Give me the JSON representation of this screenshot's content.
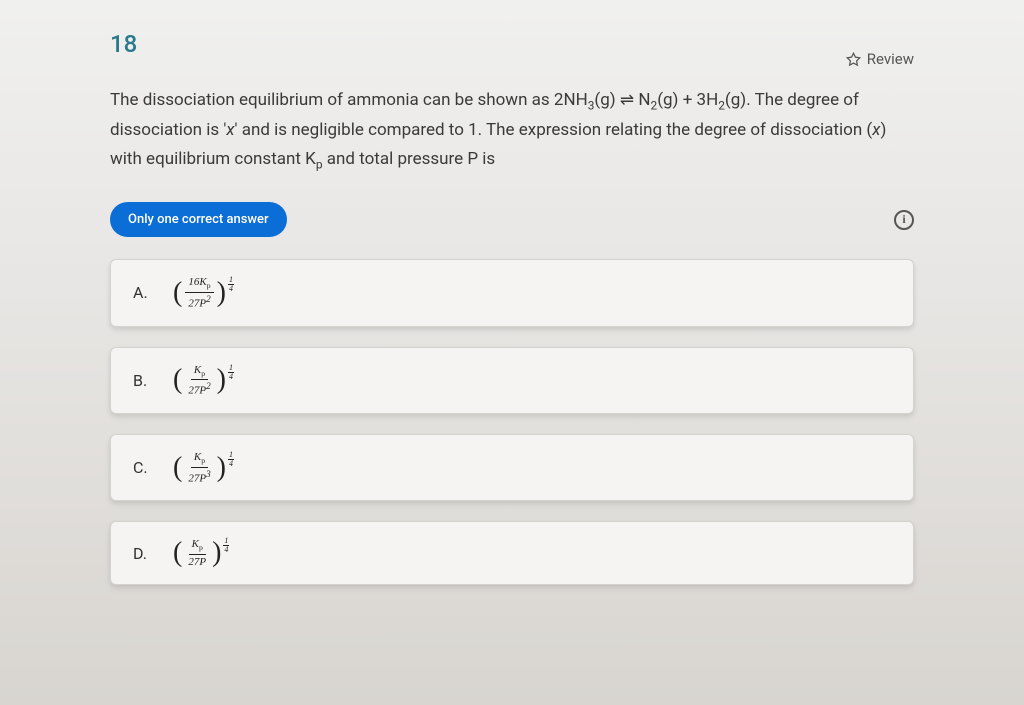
{
  "question": {
    "number": "18",
    "review_label": "Review",
    "text_html": "The dissociation equilibrium of ammonia can be shown as 2NH<sub>3</sub>(g) ⇌ N<sub>2</sub>(g) + 3H<sub>2</sub>(g). The degree of dissociation is '<i>x</i>' and is negligible compared to 1. The expression relating the degree of dissociation (<i>x</i>) with equilibrium constant K<sub>p</sub> and total pressure P is",
    "badge_label": "Only one correct answer",
    "info_symbol": "i"
  },
  "options": [
    {
      "letter": "A.",
      "numerator": "16K<sub>p</sub>",
      "denominator": "27P<sup>2</sup>",
      "exp_num": "1",
      "exp_den": "4"
    },
    {
      "letter": "B.",
      "numerator": "K<sub>p</sub>",
      "denominator": "27P<sup>2</sup>",
      "exp_num": "1",
      "exp_den": "4"
    },
    {
      "letter": "C.",
      "numerator": "K<sub>p</sub>",
      "denominator": "27P<sup>3</sup>",
      "exp_num": "1",
      "exp_den": "4"
    },
    {
      "letter": "D.",
      "numerator": "K<sub>p</sub>",
      "denominator": "27P",
      "exp_num": "1",
      "exp_den": "4"
    }
  ],
  "colors": {
    "accent": "#2a7a8c",
    "badge_bg": "#0b6dd6",
    "text": "#3a3a3a",
    "option_bg": "#f5f4f2",
    "option_border": "#d5d3cf"
  }
}
